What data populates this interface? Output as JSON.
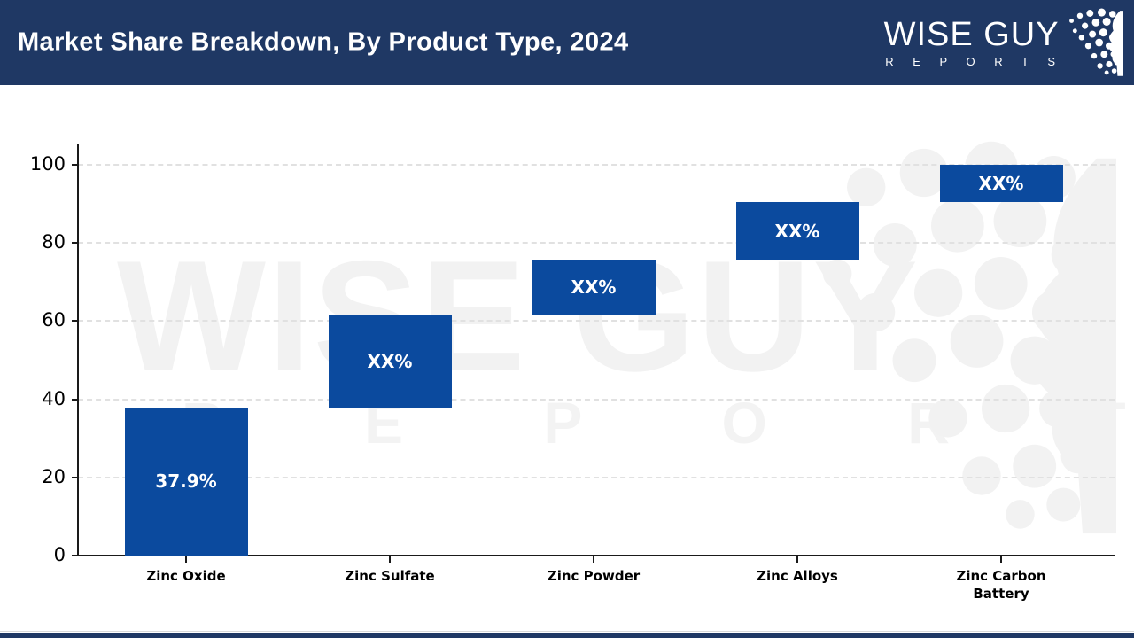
{
  "header": {
    "title": "Market Share Breakdown, By Product Type, 2024",
    "logo": {
      "line1": "WISE GUY",
      "line2": "R E P O R T S"
    },
    "bg_color": "#1F3864"
  },
  "watermark": {
    "line1": "WISE GUY",
    "line2": "R E P O R T S"
  },
  "chart_data": {
    "type": "bar",
    "subtype": "waterfall-stacked-share",
    "title": "Market Share Breakdown, By Product Type, 2024",
    "categories": [
      "Zinc Oxide",
      "Zinc Sulfate",
      "Zinc Powder",
      "Zinc Alloys",
      "Zinc Carbon Battery"
    ],
    "segments": [
      {
        "start": 0,
        "end": 37.9,
        "label": "37.9%"
      },
      {
        "start": 37.9,
        "end": 61.5,
        "label": "XX%"
      },
      {
        "start": 61.5,
        "end": 75.8,
        "label": "XX%"
      },
      {
        "start": 75.8,
        "end": 90.4,
        "label": "XX%"
      },
      {
        "start": 90.4,
        "end": 100,
        "label": "XX%"
      }
    ],
    "xlabel": "",
    "ylabel": "",
    "ylim": [
      0,
      100
    ],
    "yticks": [
      0,
      20,
      40,
      60,
      80,
      100
    ],
    "grid": "horizontal dashed",
    "legend": "none",
    "bar_color": "#0B4A9E",
    "bar_label_color": "#ffffff",
    "axis_color": "#1a1a1a"
  }
}
